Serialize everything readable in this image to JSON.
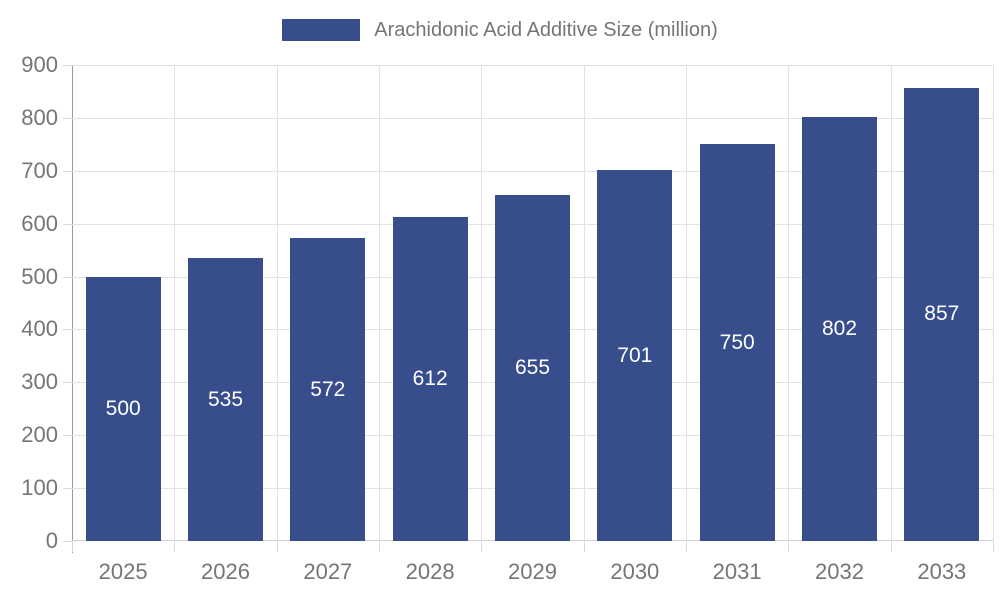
{
  "chart_data": {
    "type": "bar",
    "title": "Arachidonic Acid Additive Size (million)",
    "categories": [
      "2025",
      "2026",
      "2027",
      "2028",
      "2029",
      "2030",
      "2031",
      "2032",
      "2033"
    ],
    "values": [
      500,
      535,
      572,
      612,
      655,
      701,
      750,
      802,
      857
    ],
    "xlabel": "",
    "ylabel": "",
    "ylim": [
      0,
      900
    ],
    "ytick_step": 100,
    "grid": true,
    "legend_position": "top-center",
    "colors": {
      "bar": "#374d8c",
      "value_label": "#ffffff",
      "tick_label": "#757575",
      "legend_text": "#757575",
      "grid": "#e2e2e2",
      "axis_left": "#9a9a9a",
      "axis_bottom": "#cfcfcf",
      "tick_mark": "#d9d9d9",
      "background": "#ffffff"
    }
  }
}
